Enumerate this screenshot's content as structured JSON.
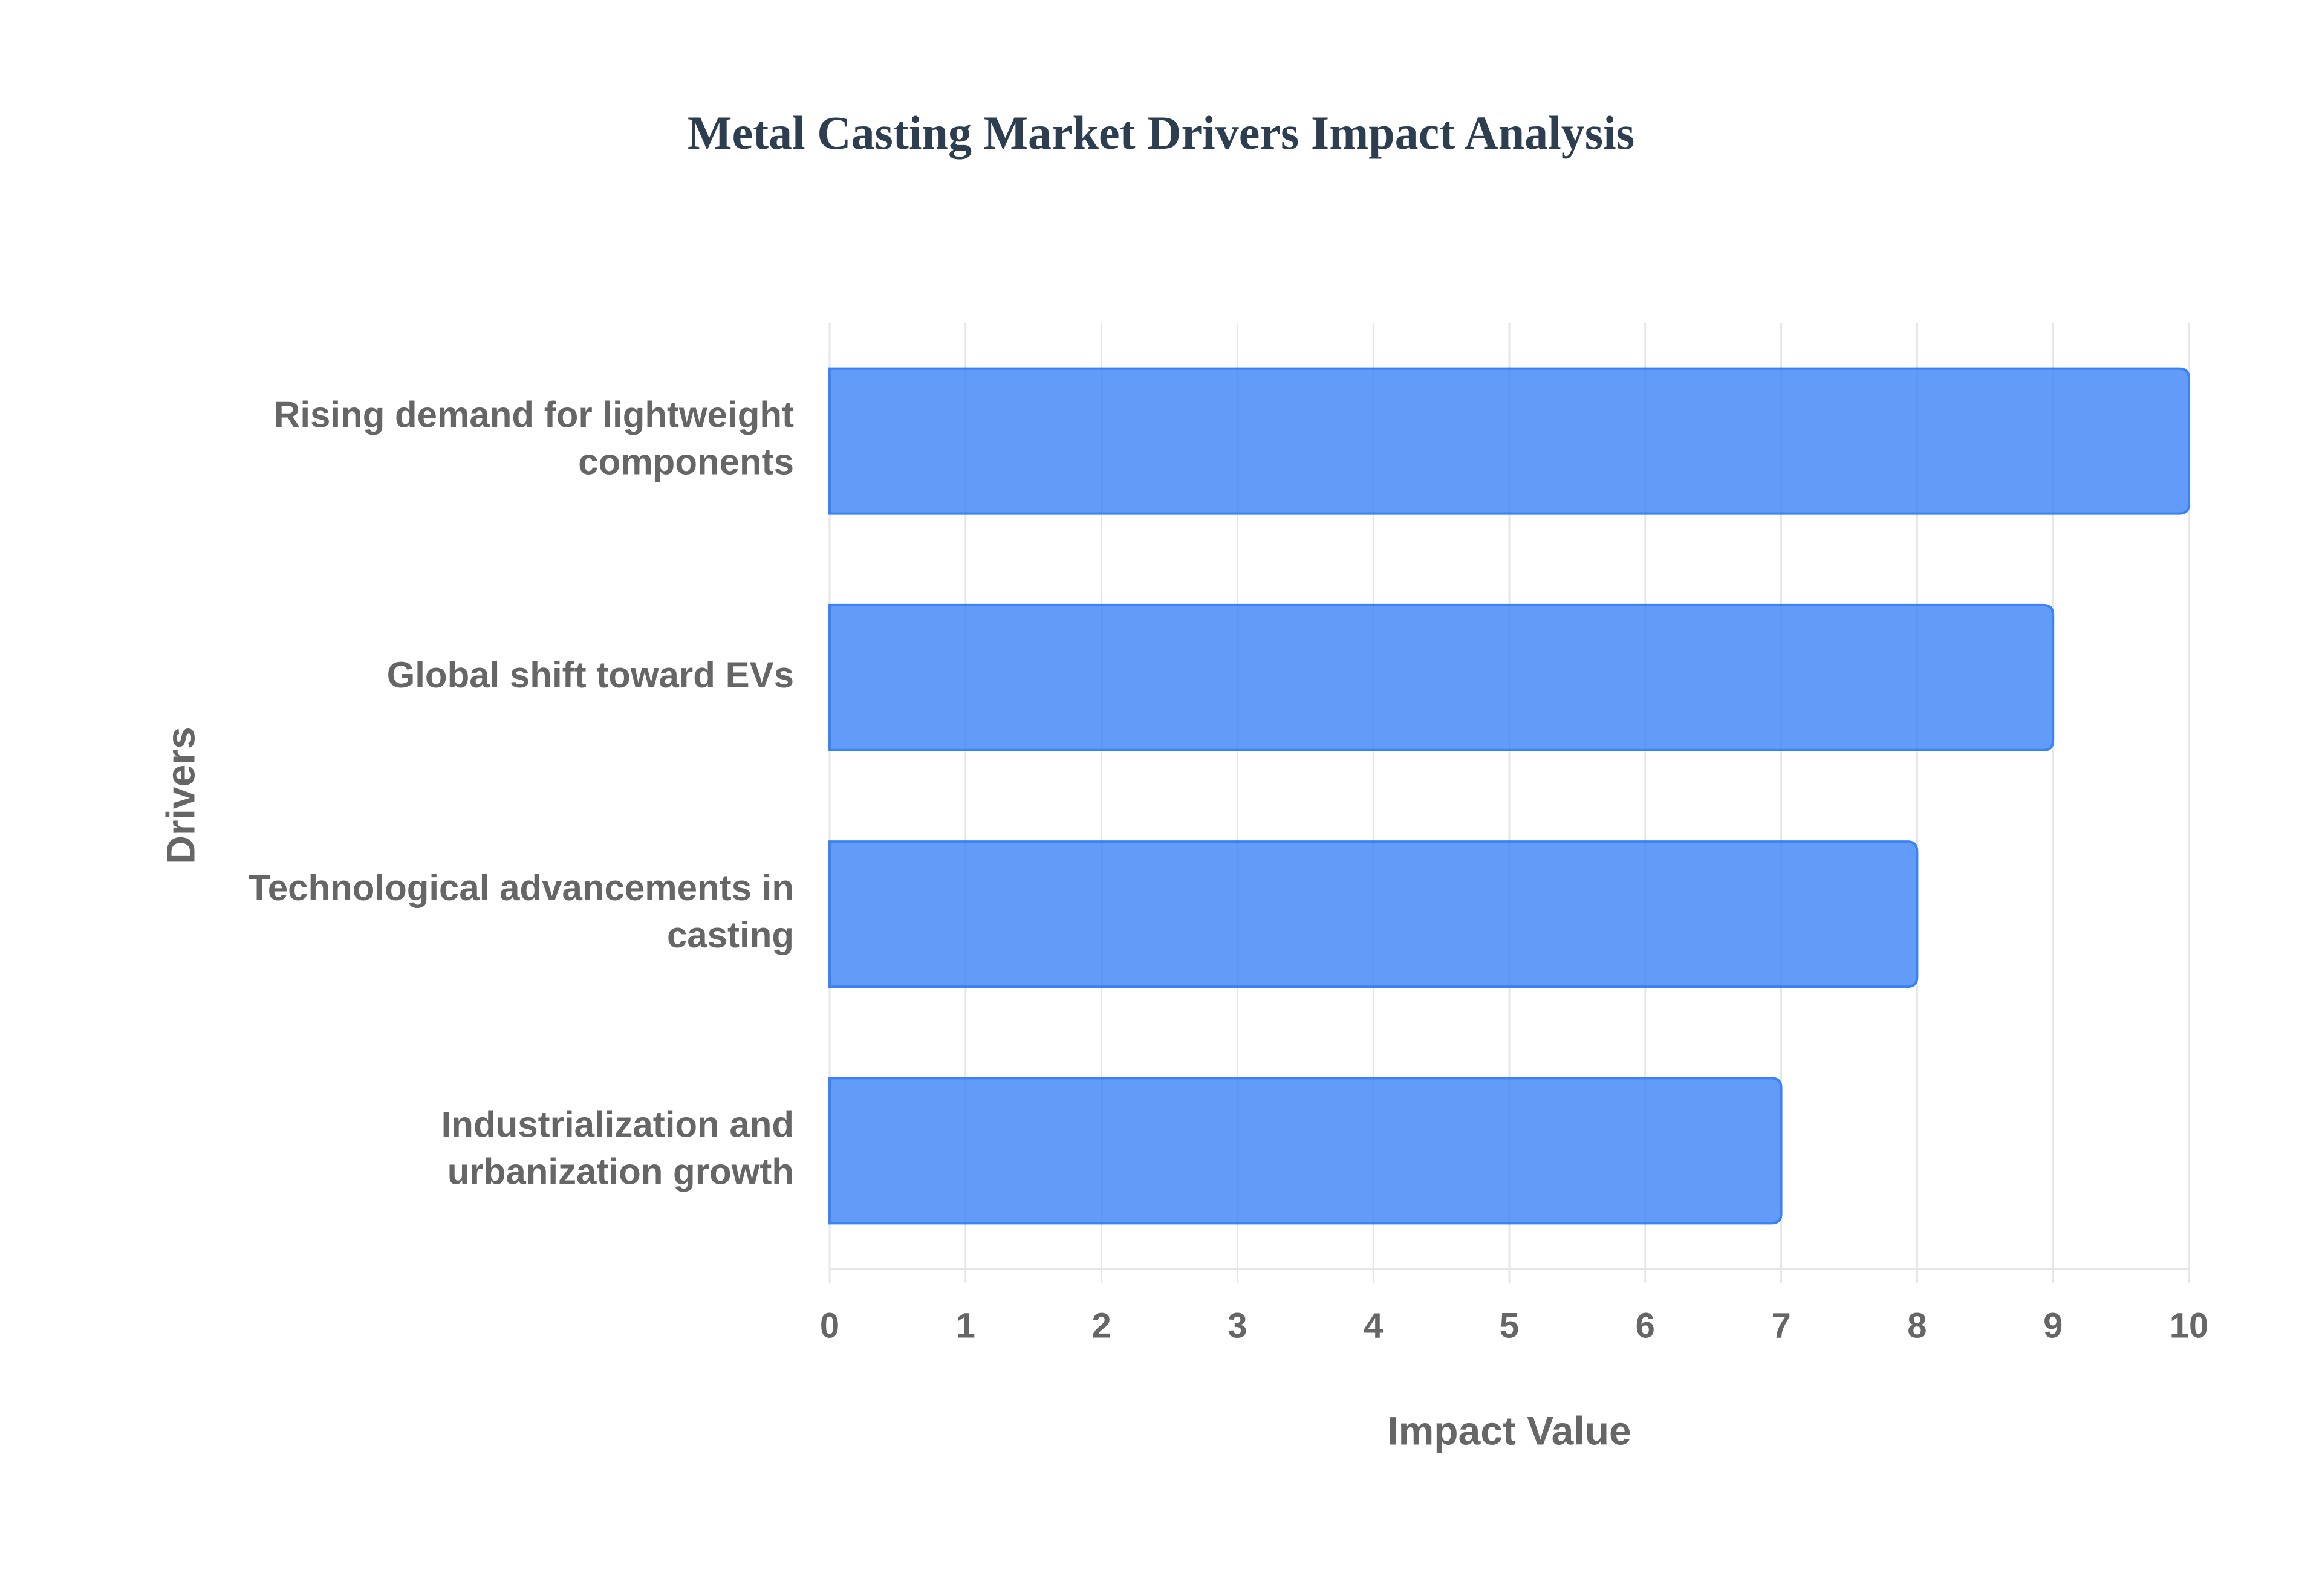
{
  "chart_data": {
    "type": "bar",
    "orientation": "horizontal",
    "title": "Metal Casting Market Drivers Impact Analysis",
    "x_label": "Impact Value",
    "y_label": "Drivers",
    "categories": [
      "Rising demand for lightweight components",
      "Global shift toward EVs",
      "Technological advancements in casting",
      "Industrialization and urbanization growth"
    ],
    "values": [
      10,
      9,
      8,
      7
    ],
    "color": "#3b82f6",
    "xlim": [
      0,
      10
    ],
    "xticks": [
      0,
      1,
      2,
      3,
      4,
      5,
      6,
      7,
      8,
      9,
      10
    ],
    "grid": true
  }
}
